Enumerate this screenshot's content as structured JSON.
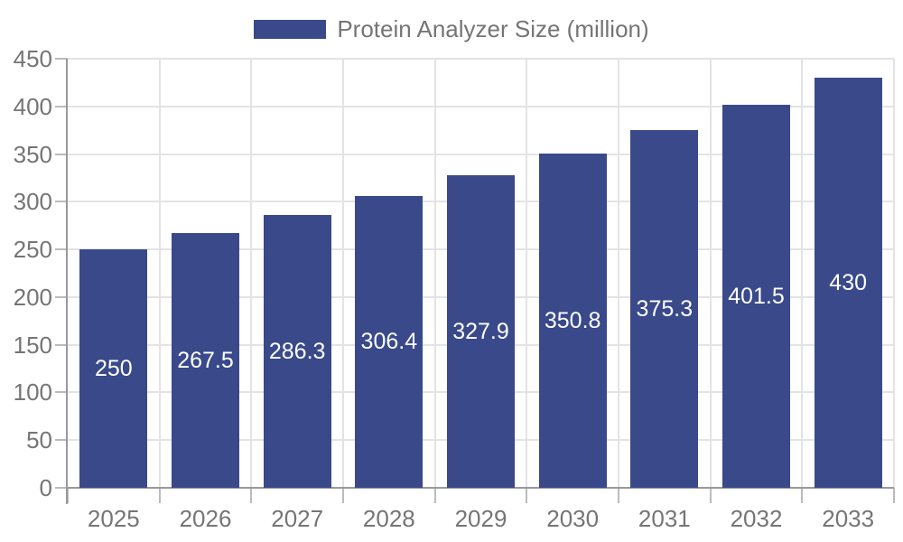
{
  "legend": {
    "label": "Protein Analyzer Size (million)"
  },
  "colors": {
    "bar": "#39498A",
    "text": "#757575",
    "bar_label": "#FFFFFF",
    "grid": "#E3E3E3",
    "axis": "#999999",
    "tick": "#BBBBBB",
    "background": "#FFFFFF"
  },
  "chart_data": {
    "type": "bar",
    "title": "Protein Analyzer Size (million)",
    "categories": [
      "2025",
      "2026",
      "2027",
      "2028",
      "2029",
      "2030",
      "2031",
      "2032",
      "2033"
    ],
    "values": [
      250,
      267.5,
      286.3,
      306.4,
      327.9,
      350.8,
      375.3,
      401.5,
      430
    ],
    "value_labels": [
      "250",
      "267.5",
      "286.3",
      "306.4",
      "327.9",
      "350.8",
      "375.3",
      "401.5",
      "430"
    ],
    "xlabel": "",
    "ylabel": "",
    "ylim": [
      0,
      450
    ],
    "y_ticks": [
      0,
      50,
      100,
      150,
      200,
      250,
      300,
      350,
      400,
      450
    ],
    "grid": true,
    "legend_position": "top",
    "value_label_position": "inside-center"
  }
}
